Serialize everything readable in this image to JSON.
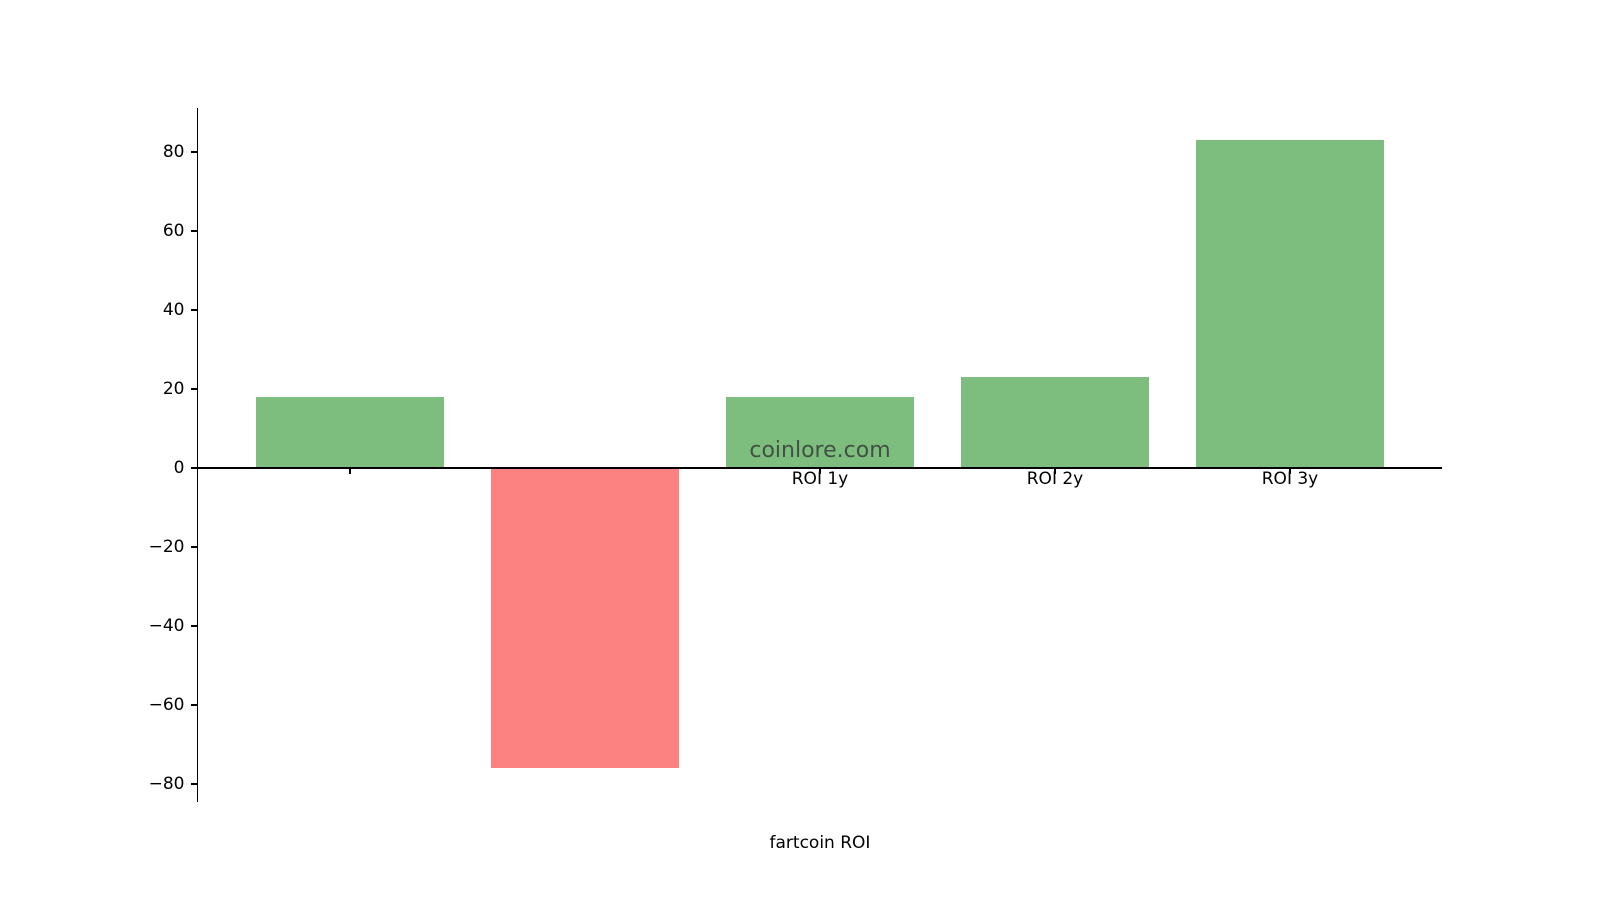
{
  "watermark_text": "coinlore.com",
  "chart_data": {
    "type": "bar",
    "title": "",
    "xlabel": "fartcoin ROI",
    "ylabel": "",
    "categories": [
      "",
      "",
      "ROI 1y",
      "ROI 2y",
      "ROI 3y"
    ],
    "values": [
      18,
      -76,
      18,
      23,
      83
    ],
    "yticks": [
      80,
      60,
      40,
      20,
      0,
      -20,
      -40,
      -60,
      -80
    ],
    "ytick_labels": [
      "80",
      "60",
      "40",
      "20",
      "0",
      "−20",
      "−40",
      "−60",
      "−80"
    ],
    "ylim": [
      -85,
      91.5
    ],
    "grid": false,
    "legend": "none",
    "colors": {
      "positive_bar": "#7dbd7d",
      "negative_bar": "#fc8181",
      "axis": "#000000",
      "text": "#000000",
      "watermark": "#3c4a41"
    }
  }
}
